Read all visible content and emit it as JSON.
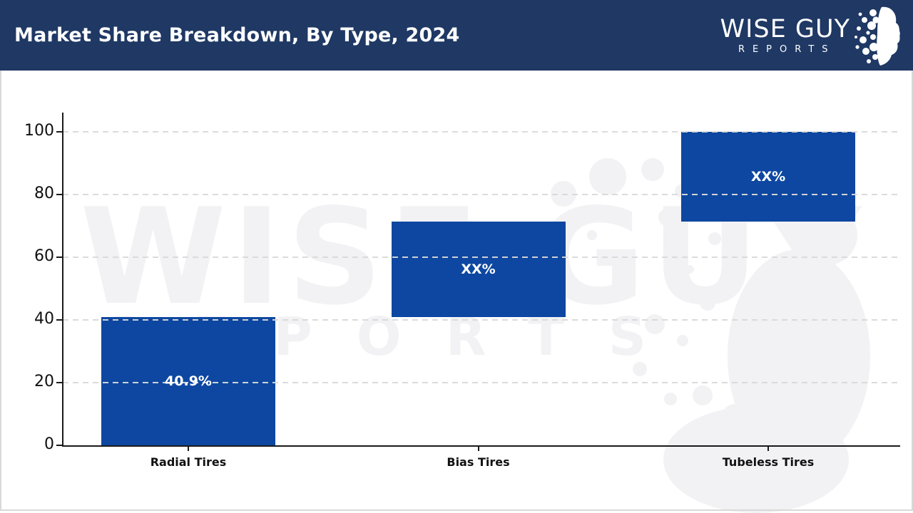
{
  "header": {
    "title": "Market Share Breakdown, By Type, 2024",
    "logo": {
      "line1": "WISE GUY",
      "line2": "REPORTS",
      "face_icon": "dotted-head-profile-icon"
    }
  },
  "watermark": {
    "line1": "WISE GUY",
    "line2": "REPORTS"
  },
  "colors": {
    "header_bg": "#1f3864",
    "bar": "#0d47a1",
    "grid": "#d9d9d9",
    "axis": "#1a1a1a",
    "bar_label": "#ffffff",
    "watermark": "#f2f2f4"
  },
  "chart_data": {
    "type": "bar",
    "variant": "stacked-waterfall",
    "title": "Market Share Breakdown, By Type, 2024",
    "xlabel": "",
    "ylabel": "",
    "categories": [
      "Radial Tires",
      "Bias Tires",
      "Tubeless Tires"
    ],
    "series": [
      {
        "name": "Market Share (%)",
        "segments": [
          {
            "category": "Radial Tires",
            "start": 0,
            "end": 40.9,
            "label": "40.9%"
          },
          {
            "category": "Bias Tires",
            "start": 40.9,
            "end": 71.4,
            "label": "XX%"
          },
          {
            "category": "Tubeless Tires",
            "start": 71.4,
            "end": 100,
            "label": "XX%"
          }
        ]
      }
    ],
    "yticks": [
      0,
      20,
      40,
      60,
      80,
      100
    ],
    "ylim": [
      0,
      105.7
    ],
    "grid": "horizontal-dashed",
    "legend": "none"
  }
}
